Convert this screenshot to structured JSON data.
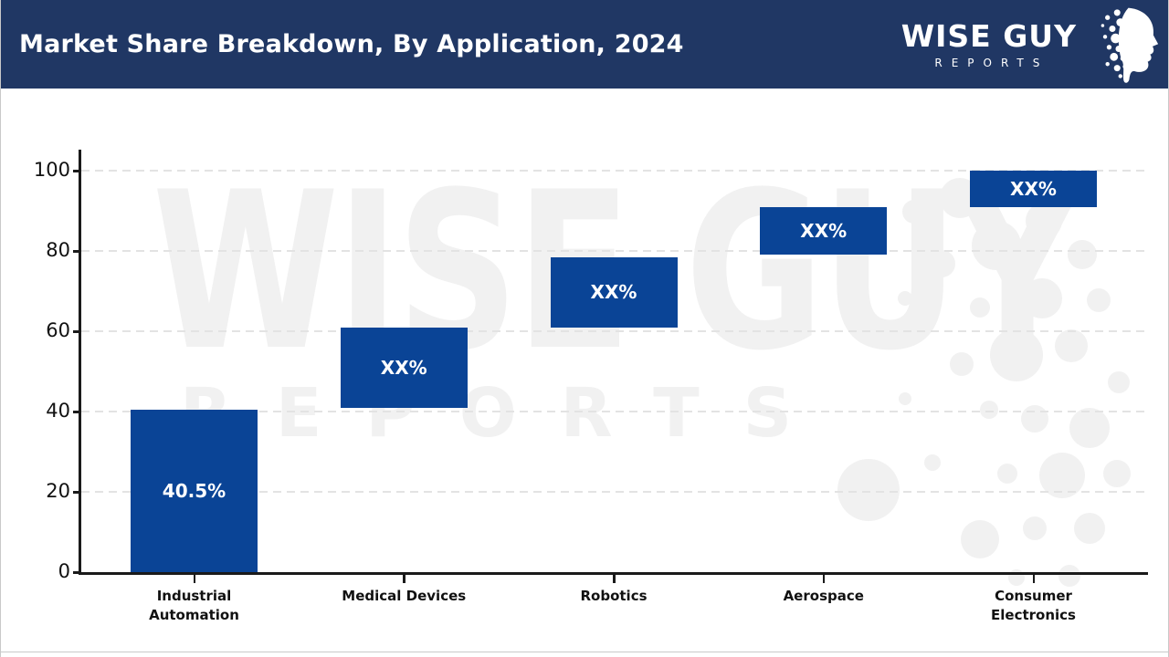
{
  "header": {
    "title": "Market Share Breakdown, By Application, 2024",
    "bg_color": "#203764",
    "logo": {
      "line1": "WISE GUY",
      "line2": "REPORTS"
    }
  },
  "watermark": {
    "line1": "WISE GUY",
    "line2": "REPORTS"
  },
  "chart_data": {
    "type": "bar",
    "subtype": "floating-waterfall",
    "title": "Market Share Breakdown, By Application, 2024",
    "xlabel": "",
    "ylabel": "",
    "categories": [
      "Industrial Automation",
      "Medical Devices",
      "Robotics",
      "Aerospace",
      "Consumer Electronics"
    ],
    "segments": [
      {
        "category": "Industrial Automation",
        "start": 0,
        "end": 40.5,
        "label": "40.5%"
      },
      {
        "category": "Medical Devices",
        "start": 41,
        "end": 61,
        "label": "XX%"
      },
      {
        "category": "Robotics",
        "start": 61,
        "end": 78.5,
        "label": "XX%"
      },
      {
        "category": "Aerospace",
        "start": 79,
        "end": 91,
        "label": "XX%"
      },
      {
        "category": "Consumer Electronics",
        "start": 91,
        "end": 100,
        "label": "XX%"
      }
    ],
    "yticks": [
      0,
      20,
      40,
      60,
      80,
      100
    ],
    "ylim": [
      0,
      104
    ],
    "grid": "horizontal-dashed",
    "bar_color": "#0a4496",
    "bar_label_color": "#ffffff",
    "axis_color": "#1a1a1a",
    "gridline_color": "#e3e3e3"
  }
}
